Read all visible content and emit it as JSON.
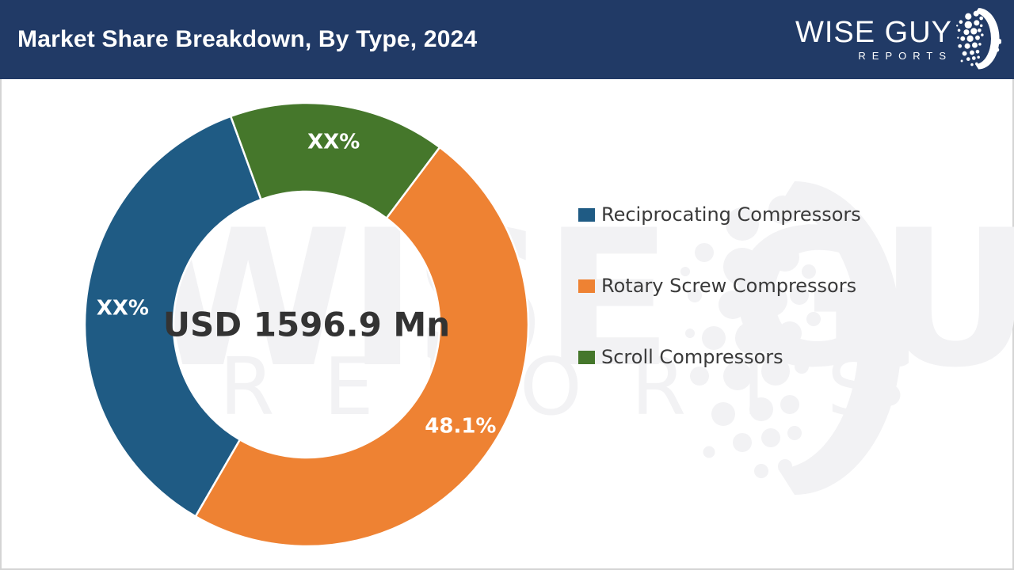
{
  "header": {
    "title": "Market Share Breakdown, By Type, 2024",
    "bg_color": "#213A66",
    "logo": {
      "line1": "WISE GUY",
      "line2": "REPORTS"
    }
  },
  "watermark": {
    "line1": "WISE GUY",
    "line2": "REPORTS"
  },
  "chart_data": {
    "type": "pie",
    "subtype": "donut",
    "title": "Market Share Breakdown, By Type, 2024",
    "center_label": "USD 1596.9 Mn",
    "start_angle_deg": 110,
    "direction": "counterclockwise",
    "inner_radius_ratio": 0.6,
    "legend_position": "right",
    "slice_border_color": "#ffffff",
    "series": [
      {
        "name": "Reciprocating Compressors",
        "display_label": "XX%",
        "value_pct": 36.1,
        "color": "#1F5B84"
      },
      {
        "name": "Rotary Screw Compressors",
        "display_label": "48.1%",
        "value_pct": 48.1,
        "color": "#EE8233"
      },
      {
        "name": "Scroll Compressors",
        "display_label": "XX%",
        "value_pct": 15.8,
        "color": "#45772B"
      }
    ]
  }
}
